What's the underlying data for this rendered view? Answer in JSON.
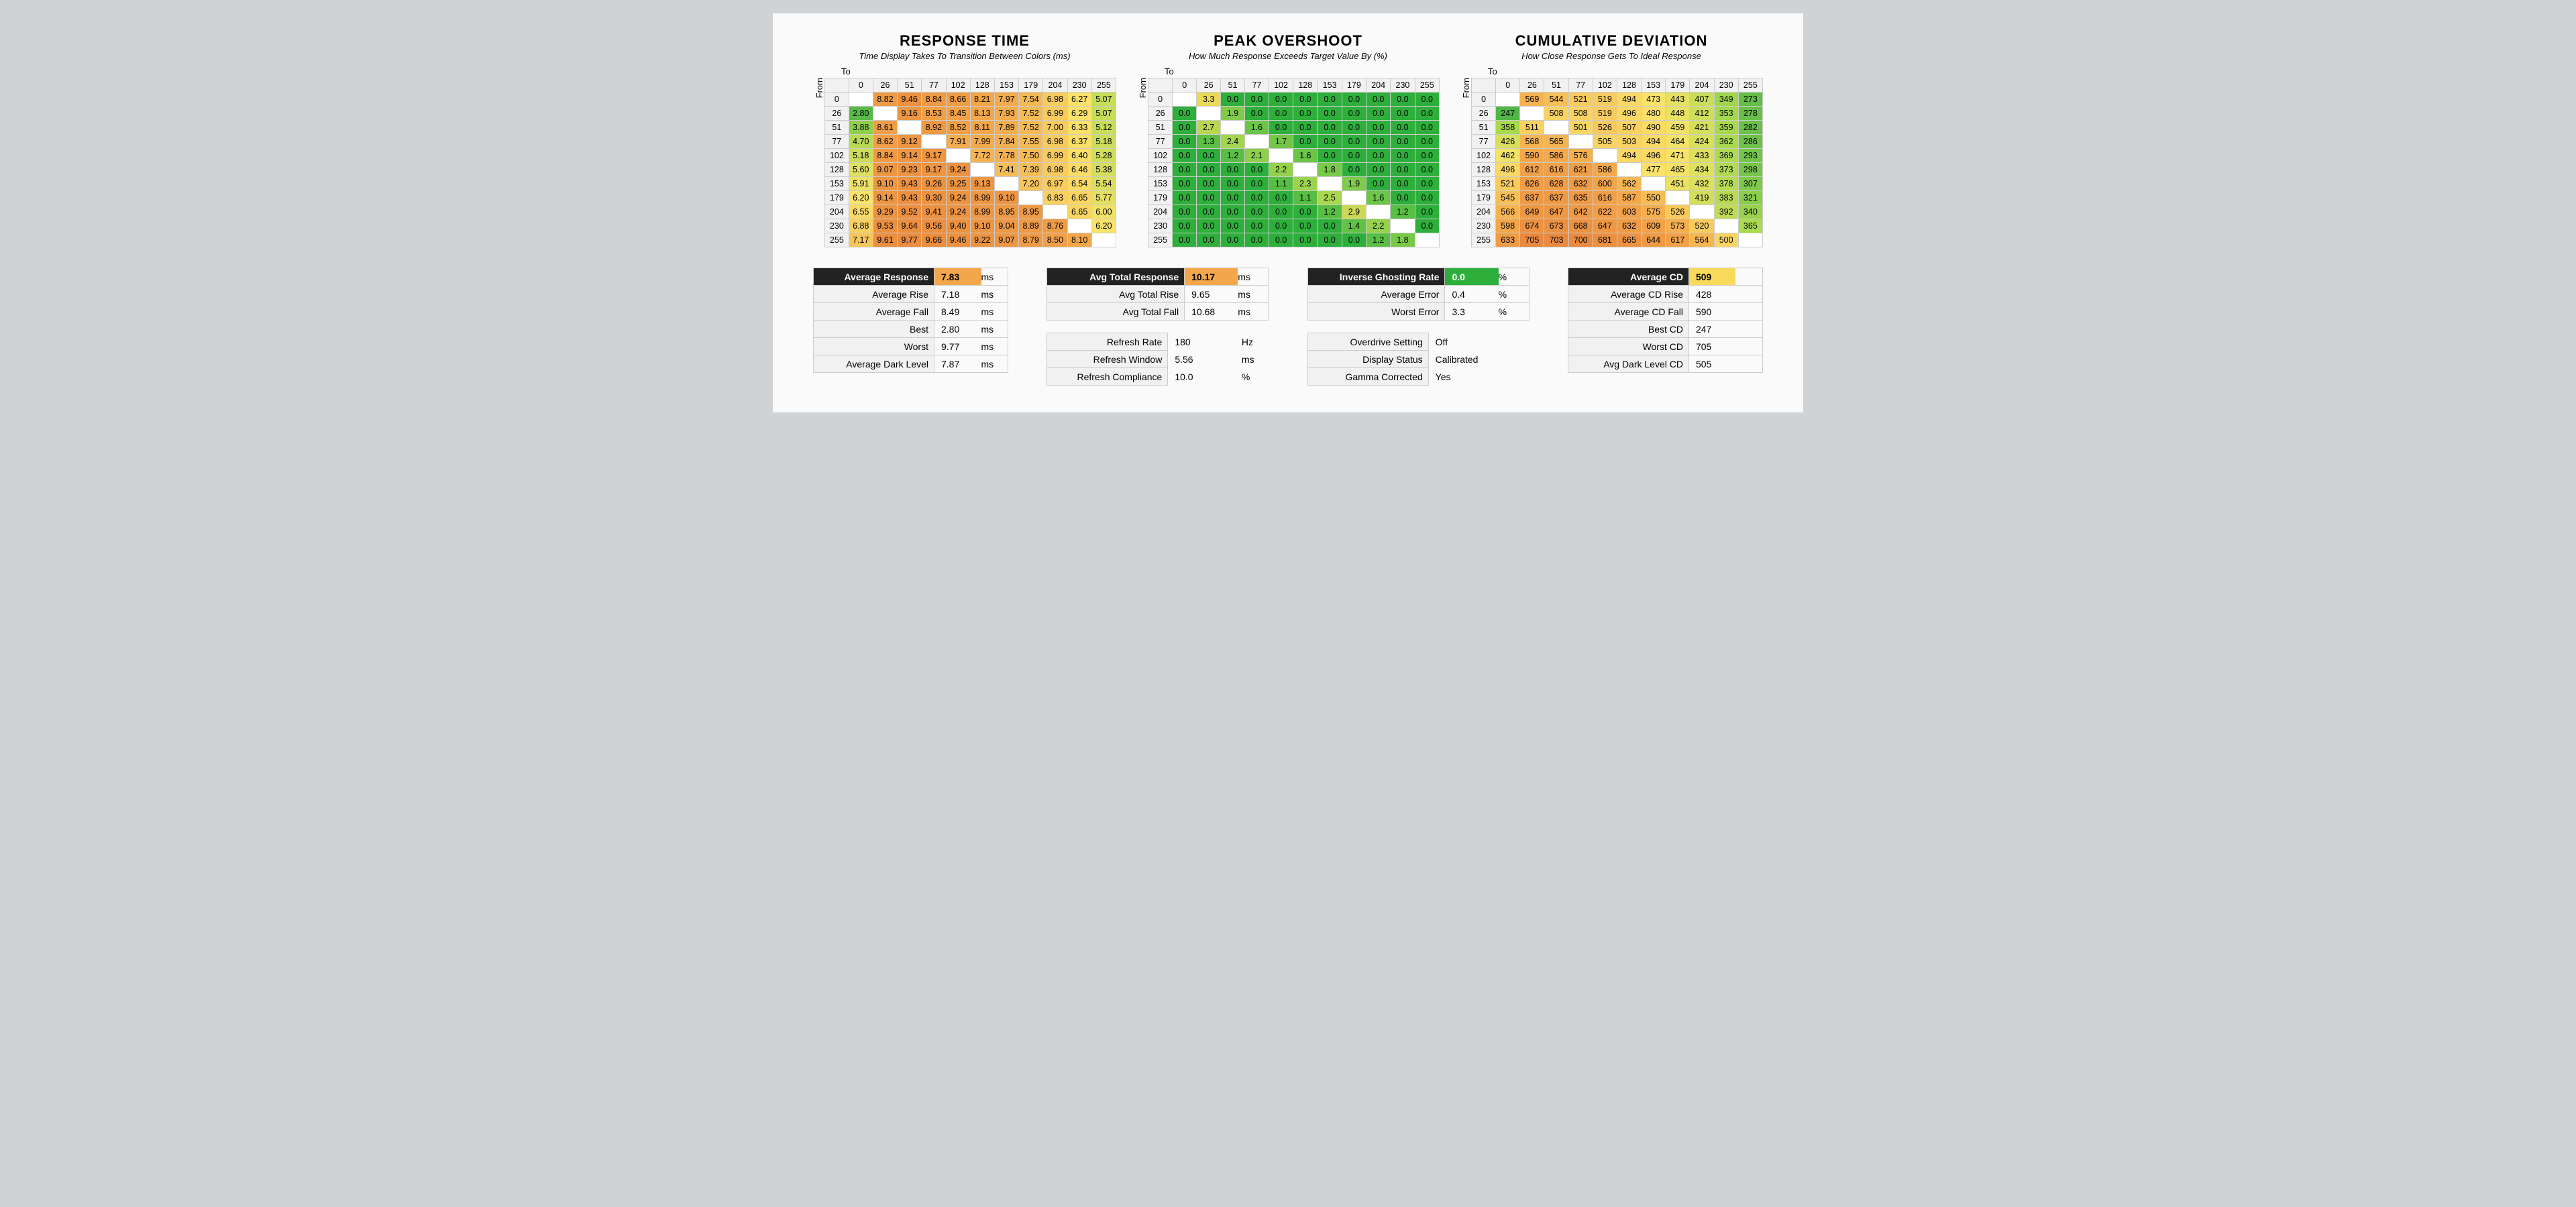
{
  "headers": [
    "0",
    "26",
    "51",
    "77",
    "102",
    "128",
    "153",
    "179",
    "204",
    "230",
    "255"
  ],
  "axis": {
    "to": "To",
    "from": "From"
  },
  "heatmaps": {
    "response_time": {
      "title": "RESPONSE TIME",
      "subtitle": "Time Display Takes To Transition Between Colors (ms)",
      "scale": {
        "lo": 2.5,
        "hi": 10.0,
        "mode": "rt"
      },
      "data": [
        [
          null,
          "8.82",
          "9.46",
          "8.84",
          "8.66",
          "8.21",
          "7.97",
          "7.54",
          "6.98",
          "6.27",
          "5.07"
        ],
        [
          "2.80",
          null,
          "9.16",
          "8.53",
          "8.45",
          "8.13",
          "7.93",
          "7.52",
          "6.99",
          "6.29",
          "5.07"
        ],
        [
          "3.88",
          "8.61",
          null,
          "8.92",
          "8.52",
          "8.11",
          "7.89",
          "7.52",
          "7.00",
          "6.33",
          "5.12"
        ],
        [
          "4.70",
          "8.62",
          "9.12",
          null,
          "7.91",
          "7.99",
          "7.84",
          "7.55",
          "6.98",
          "6.37",
          "5.18"
        ],
        [
          "5.18",
          "8.84",
          "9.14",
          "9.17",
          null,
          "7.72",
          "7.78",
          "7.50",
          "6.99",
          "6.40",
          "5.28"
        ],
        [
          "5.60",
          "9.07",
          "9.23",
          "9.17",
          "9.24",
          null,
          "7.41",
          "7.39",
          "6.98",
          "6.46",
          "5.38"
        ],
        [
          "5.91",
          "9.10",
          "9.43",
          "9.26",
          "9.25",
          "9.13",
          null,
          "7.20",
          "6.97",
          "6.54",
          "5.54"
        ],
        [
          "6.20",
          "9.14",
          "9.43",
          "9.30",
          "9.24",
          "8.99",
          "9.10",
          null,
          "6.83",
          "6.65",
          "5.77"
        ],
        [
          "6.55",
          "9.29",
          "9.52",
          "9.41",
          "9.24",
          "8.99",
          "8.95",
          "8.95",
          null,
          "6.65",
          "6.00"
        ],
        [
          "6.88",
          "9.53",
          "9.64",
          "9.56",
          "9.40",
          "9.10",
          "9.04",
          "8.89",
          "8.76",
          null,
          "6.20"
        ],
        [
          "7.17",
          "9.61",
          "9.77",
          "9.66",
          "9.46",
          "9.22",
          "9.07",
          "8.79",
          "8.50",
          "8.10",
          null
        ]
      ]
    },
    "peak_overshoot": {
      "title": "PEAK OVERSHOOT",
      "subtitle": "How Much Response Exceeds Target Value By (%)",
      "scale": {
        "lo": 0,
        "hi": 5,
        "mode": "os"
      },
      "data": [
        [
          null,
          "3.3",
          "0.0",
          "0.0",
          "0.0",
          "0.0",
          "0.0",
          "0.0",
          "0.0",
          "0.0",
          "0.0"
        ],
        [
          "0.0",
          null,
          "1.9",
          "0.0",
          "0.0",
          "0.0",
          "0.0",
          "0.0",
          "0.0",
          "0.0",
          "0.0"
        ],
        [
          "0.0",
          "2.7",
          null,
          "1.6",
          "0.0",
          "0.0",
          "0.0",
          "0.0",
          "0.0",
          "0.0",
          "0.0"
        ],
        [
          "0.0",
          "1.3",
          "2.4",
          null,
          "1.7",
          "0.0",
          "0.0",
          "0.0",
          "0.0",
          "0.0",
          "0.0"
        ],
        [
          "0.0",
          "0.0",
          "1.2",
          "2.1",
          null,
          "1.6",
          "0.0",
          "0.0",
          "0.0",
          "0.0",
          "0.0"
        ],
        [
          "0.0",
          "0.0",
          "0.0",
          "0.0",
          "2.2",
          null,
          "1.8",
          "0.0",
          "0.0",
          "0.0",
          "0.0"
        ],
        [
          "0.0",
          "0.0",
          "0.0",
          "0.0",
          "1.1",
          "2.3",
          null,
          "1.9",
          "0.0",
          "0.0",
          "0.0"
        ],
        [
          "0.0",
          "0.0",
          "0.0",
          "0.0",
          "0.0",
          "1.1",
          "2.5",
          null,
          "1.6",
          "0.0",
          "0.0"
        ],
        [
          "0.0",
          "0.0",
          "0.0",
          "0.0",
          "0.0",
          "0.0",
          "1.2",
          "2.9",
          null,
          "1.2",
          "0.0"
        ],
        [
          "0.0",
          "0.0",
          "0.0",
          "0.0",
          "0.0",
          "0.0",
          "0.0",
          "1.4",
          "2.2",
          null,
          "0.0"
        ],
        [
          "0.0",
          "0.0",
          "0.0",
          "0.0",
          "0.0",
          "0.0",
          "0.0",
          "0.0",
          "1.2",
          "1.8",
          null
        ]
      ]
    },
    "cumulative_deviation": {
      "title": "CUMULATIVE DEVIATION",
      "subtitle": "How Close Response Gets To Ideal Response",
      "scale": {
        "lo": 240,
        "hi": 710,
        "mode": "rt"
      },
      "data": [
        [
          null,
          "569",
          "544",
          "521",
          "519",
          "494",
          "473",
          "443",
          "407",
          "349",
          "273"
        ],
        [
          "247",
          null,
          "508",
          "508",
          "519",
          "496",
          "480",
          "448",
          "412",
          "353",
          "278"
        ],
        [
          "358",
          "511",
          null,
          "501",
          "526",
          "507",
          "490",
          "459",
          "421",
          "359",
          "282"
        ],
        [
          "426",
          "568",
          "565",
          null,
          "505",
          "503",
          "494",
          "464",
          "424",
          "362",
          "286"
        ],
        [
          "462",
          "590",
          "586",
          "576",
          null,
          "494",
          "496",
          "471",
          "433",
          "369",
          "293"
        ],
        [
          "496",
          "612",
          "616",
          "621",
          "586",
          null,
          "477",
          "465",
          "434",
          "373",
          "298"
        ],
        [
          "521",
          "626",
          "628",
          "632",
          "600",
          "562",
          null,
          "451",
          "432",
          "378",
          "307"
        ],
        [
          "545",
          "637",
          "637",
          "635",
          "616",
          "587",
          "550",
          null,
          "419",
          "383",
          "321"
        ],
        [
          "566",
          "649",
          "647",
          "642",
          "622",
          "603",
          "575",
          "526",
          null,
          "392",
          "340"
        ],
        [
          "598",
          "674",
          "673",
          "668",
          "647",
          "632",
          "609",
          "573",
          "520",
          null,
          "365"
        ],
        [
          "633",
          "705",
          "703",
          "700",
          "681",
          "665",
          "644",
          "617",
          "564",
          "500",
          null
        ]
      ]
    }
  },
  "colors": {
    "green": "#2eaf3c",
    "lime": "#a7d94d",
    "yellow": "#fbe36b",
    "orange": "#f3a64a",
    "deep_orange": "#e8883d"
  },
  "summaries": {
    "col1": [
      {
        "rows": [
          {
            "label": "Average Response",
            "value": "7.83",
            "unit": "ms",
            "hl": true,
            "bg": "#f3a64a"
          },
          {
            "label": "Average Rise",
            "value": "7.18",
            "unit": "ms"
          },
          {
            "label": "Average Fall",
            "value": "8.49",
            "unit": "ms"
          },
          {
            "label": "Best",
            "value": "2.80",
            "unit": "ms"
          },
          {
            "label": "Worst",
            "value": "9.77",
            "unit": "ms"
          },
          {
            "label": "Average Dark Level",
            "value": "7.87",
            "unit": "ms"
          }
        ]
      }
    ],
    "col2": [
      {
        "rows": [
          {
            "label": "Avg Total Response",
            "value": "10.17",
            "unit": "ms",
            "hl": true,
            "bg": "#f3a64a"
          },
          {
            "label": "Avg Total Rise",
            "value": "9.65",
            "unit": "ms"
          },
          {
            "label": "Avg Total Fall",
            "value": "10.68",
            "unit": "ms"
          }
        ]
      },
      {
        "rows": [
          {
            "label": "Refresh Rate",
            "value": "180",
            "unit": "Hz",
            "nb": true
          },
          {
            "label": "Refresh Window",
            "value": "5.56",
            "unit": "ms",
            "nb": true
          },
          {
            "label": "Refresh Compliance",
            "value": "10.0",
            "unit": "%",
            "nb": true
          }
        ]
      }
    ],
    "col3": [
      {
        "rows": [
          {
            "label": "Inverse Ghosting Rate",
            "value": "0.0",
            "unit": "%",
            "hl": true,
            "bg": "#2eaf3c",
            "fg": "#fff"
          },
          {
            "label": "Average Error",
            "value": "0.4",
            "unit": "%"
          },
          {
            "label": "Worst Error",
            "value": "3.3",
            "unit": "%"
          }
        ]
      },
      {
        "rows": [
          {
            "label": "Overdrive Setting",
            "value": "Off",
            "unit": "",
            "nb": true
          },
          {
            "label": "Display Status",
            "value": "Calibrated",
            "unit": "",
            "nb": true
          },
          {
            "label": "Gamma Corrected",
            "value": "Yes",
            "unit": "",
            "nb": true
          }
        ]
      }
    ],
    "col4": [
      {
        "rows": [
          {
            "label": "Average CD",
            "value": "509",
            "unit": "",
            "hl": true,
            "bg": "#f9d95a"
          },
          {
            "label": "Average CD Rise",
            "value": "428",
            "unit": ""
          },
          {
            "label": "Average CD Fall",
            "value": "590",
            "unit": ""
          },
          {
            "label": "Best CD",
            "value": "247",
            "unit": ""
          },
          {
            "label": "Worst CD",
            "value": "705",
            "unit": ""
          },
          {
            "label": "Avg Dark Level CD",
            "value": "505",
            "unit": ""
          }
        ]
      }
    ]
  }
}
